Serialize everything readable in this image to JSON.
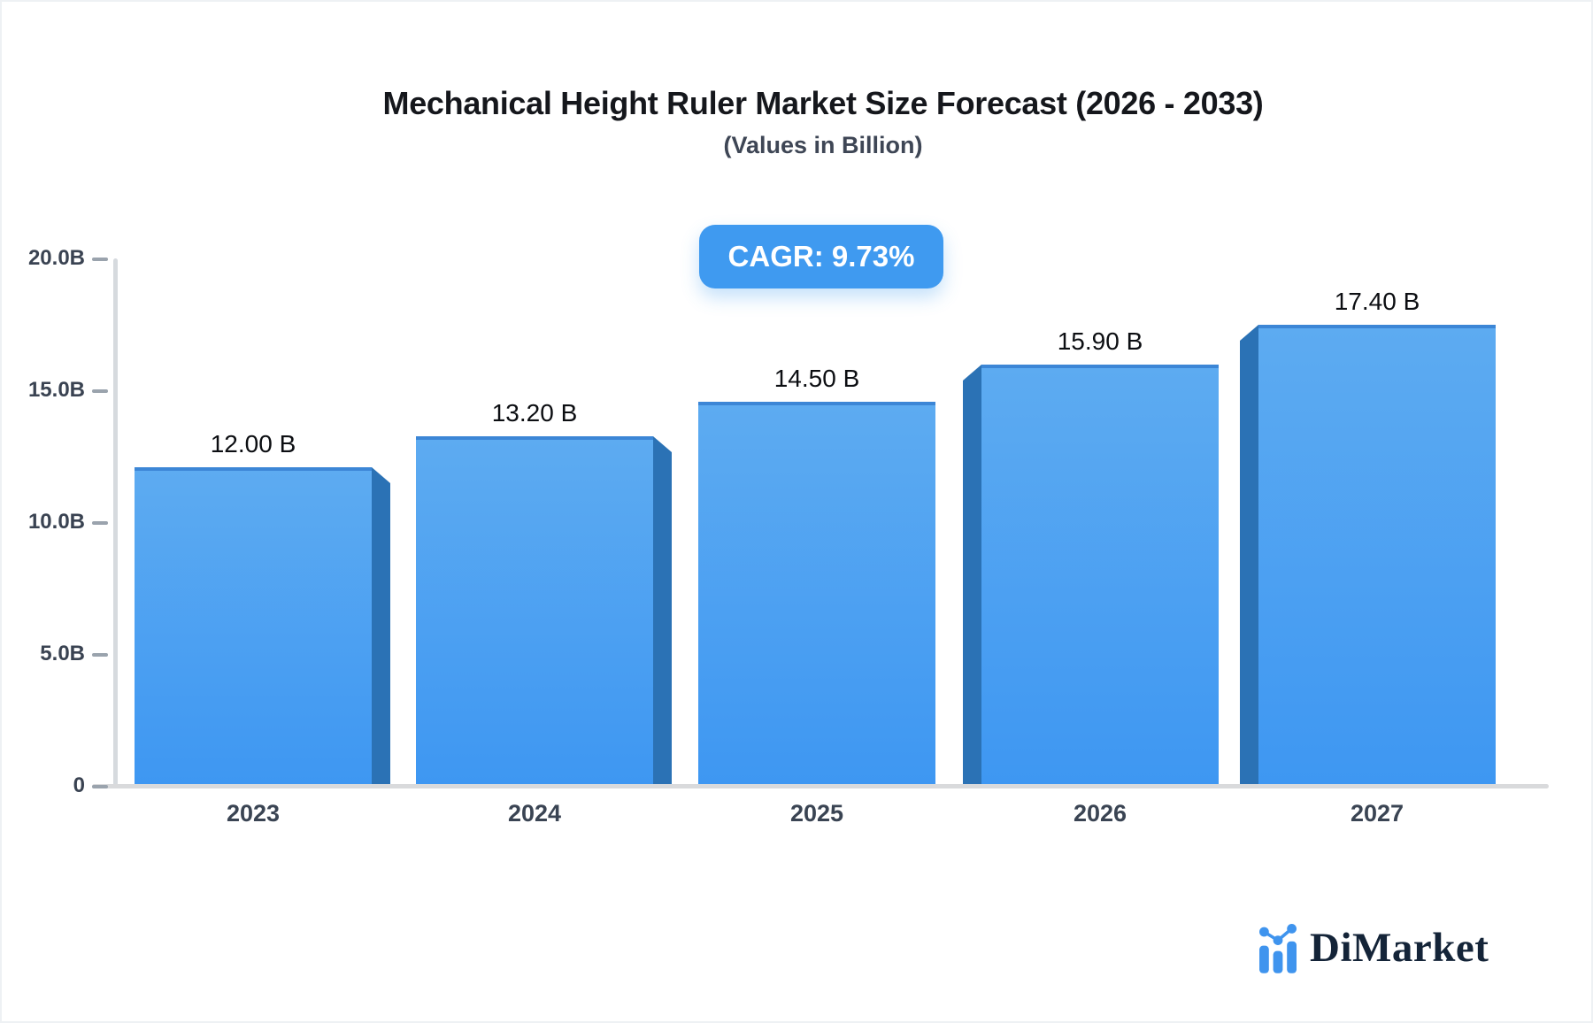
{
  "header": {
    "title": "Mechanical Height Ruler Market Size Forecast (2026 - 2033)",
    "subtitle": "(Values in Billion)"
  },
  "badge": {
    "label": "CAGR: 9.73%"
  },
  "brand": {
    "name": "DiMarket",
    "icon": "bar-line-chart-icon"
  },
  "colors": {
    "bar_face_top": "#5dabf1",
    "bar_face_bottom": "#3e97f2",
    "bar_top_border": "#3c86d6",
    "bar_side_panel": "#2b72b5",
    "badge_bg": "#3f9af0",
    "axis_line": "#d6dade",
    "tick_dash": "#9aa3ad",
    "text_dark": "#15171c",
    "text_slate": "#3a4453",
    "brand_navy": "#142438",
    "brand_blue": "#3f94ee"
  },
  "chart_data": {
    "type": "bar",
    "title": "Mechanical Height Ruler Market Size Forecast (2026 - 2033)",
    "subtitle": "(Values in Billion)",
    "cagr_label": "CAGR: 9.73%",
    "categories": [
      "2023",
      "2024",
      "2025",
      "2026",
      "2027"
    ],
    "values": [
      12.0,
      13.2,
      14.5,
      15.9,
      17.4
    ],
    "value_labels": [
      "12.00 B",
      "13.20 B",
      "14.50 B",
      "15.90 B",
      "17.40 B"
    ],
    "yticks": [
      {
        "label": "20.0B",
        "value": 20
      },
      {
        "label": "15.0B",
        "value": 15
      },
      {
        "label": "10.0B",
        "value": 10
      },
      {
        "label": "5.0B",
        "value": 5
      },
      {
        "label": "0",
        "value": 0
      }
    ],
    "ylim": [
      0,
      20
    ],
    "xlabel": "",
    "ylabel": "",
    "grid": false,
    "legend": false,
    "bar_3d_sides": [
      "right",
      "right",
      "none",
      "left",
      "left"
    ]
  }
}
